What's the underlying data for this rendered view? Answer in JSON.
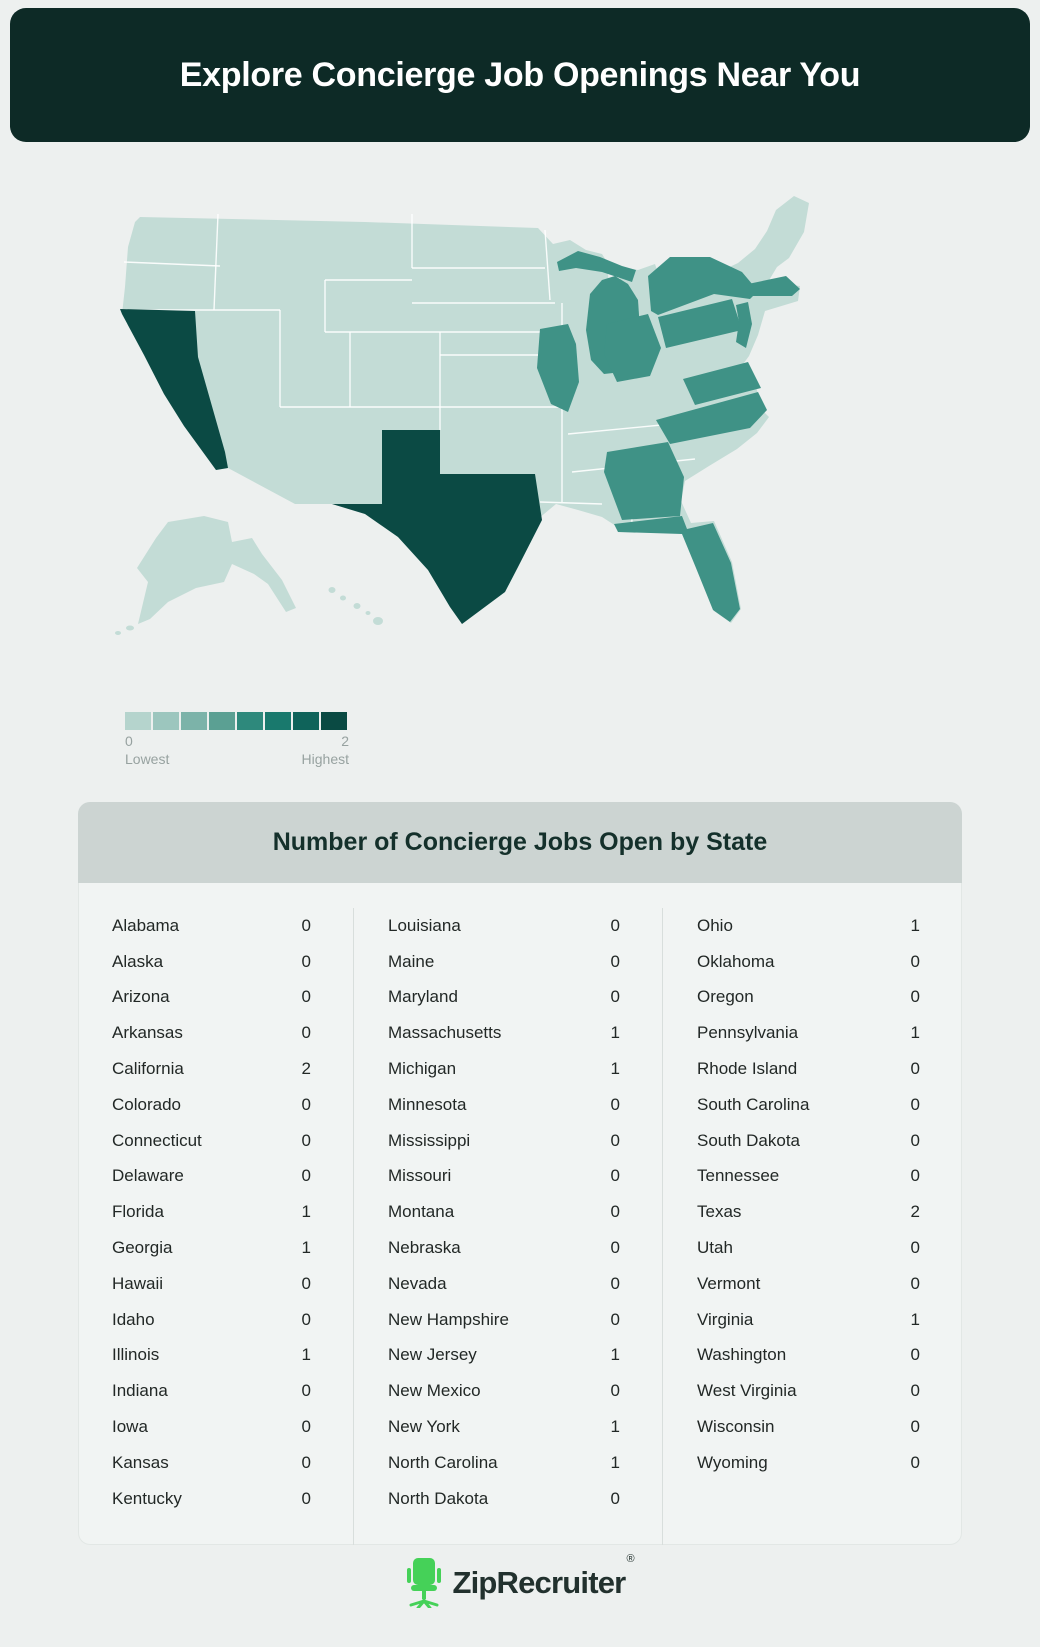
{
  "header": {
    "title": "Explore Concierge Job Openings Near You"
  },
  "map": {
    "description": "us-states-choropleth",
    "colors": {
      "value0": "#c3dcd6",
      "value1": "#3f9286",
      "value2": "#0b4a44"
    }
  },
  "legend": {
    "swatches": [
      "#b5d4cd",
      "#9cc6be",
      "#7cb3a9",
      "#5ba093",
      "#2e897c",
      "#19796d",
      "#0f635a",
      "#0a4a43"
    ],
    "min_value": "0",
    "max_value": "2",
    "min_label": "Lowest",
    "max_label": "Highest"
  },
  "table": {
    "title": "Number of Concierge Jobs Open by State",
    "columns": [
      [
        [
          "Alabama",
          "0"
        ],
        [
          "Alaska",
          "0"
        ],
        [
          "Arizona",
          "0"
        ],
        [
          "Arkansas",
          "0"
        ],
        [
          "California",
          "2"
        ],
        [
          "Colorado",
          "0"
        ],
        [
          "Connecticut",
          "0"
        ],
        [
          "Delaware",
          "0"
        ],
        [
          "Florida",
          "1"
        ],
        [
          "Georgia",
          "1"
        ],
        [
          "Hawaii",
          "0"
        ],
        [
          "Idaho",
          "0"
        ],
        [
          "Illinois",
          "1"
        ],
        [
          "Indiana",
          "0"
        ],
        [
          "Iowa",
          "0"
        ],
        [
          "Kansas",
          "0"
        ],
        [
          "Kentucky",
          "0"
        ]
      ],
      [
        [
          "Louisiana",
          "0"
        ],
        [
          "Maine",
          "0"
        ],
        [
          "Maryland",
          "0"
        ],
        [
          "Massachusetts",
          "1"
        ],
        [
          "Michigan",
          "1"
        ],
        [
          "Minnesota",
          "0"
        ],
        [
          "Mississippi",
          "0"
        ],
        [
          "Missouri",
          "0"
        ],
        [
          "Montana",
          "0"
        ],
        [
          "Nebraska",
          "0"
        ],
        [
          "Nevada",
          "0"
        ],
        [
          "New Hampshire",
          "0"
        ],
        [
          "New Jersey",
          "1"
        ],
        [
          "New Mexico",
          "0"
        ],
        [
          "New York",
          "1"
        ],
        [
          "North Carolina",
          "1"
        ],
        [
          "North Dakota",
          "0"
        ]
      ],
      [
        [
          "Ohio",
          "1"
        ],
        [
          "Oklahoma",
          "0"
        ],
        [
          "Oregon",
          "0"
        ],
        [
          "Pennsylvania",
          "1"
        ],
        [
          "Rhode Island",
          "0"
        ],
        [
          "South Carolina",
          "0"
        ],
        [
          "South Dakota",
          "0"
        ],
        [
          "Tennessee",
          "0"
        ],
        [
          "Texas",
          "2"
        ],
        [
          "Utah",
          "0"
        ],
        [
          "Vermont",
          "0"
        ],
        [
          "Virginia",
          "1"
        ],
        [
          "Washington",
          "0"
        ],
        [
          "West Virginia",
          "0"
        ],
        [
          "Wisconsin",
          "0"
        ],
        [
          "Wyoming",
          "0"
        ]
      ]
    ]
  },
  "chart_data": {
    "type": "heatmap",
    "subtype": "us-choropleth",
    "title": "Number of Concierge Jobs Open by State",
    "value_range": [
      0,
      2
    ],
    "legend": {
      "min": "Lowest",
      "max": "Highest"
    },
    "values_by_state": {
      "Alabama": 0,
      "Alaska": 0,
      "Arizona": 0,
      "Arkansas": 0,
      "California": 2,
      "Colorado": 0,
      "Connecticut": 0,
      "Delaware": 0,
      "Florida": 1,
      "Georgia": 1,
      "Hawaii": 0,
      "Idaho": 0,
      "Illinois": 1,
      "Indiana": 0,
      "Iowa": 0,
      "Kansas": 0,
      "Kentucky": 0,
      "Louisiana": 0,
      "Maine": 0,
      "Maryland": 0,
      "Massachusetts": 1,
      "Michigan": 1,
      "Minnesota": 0,
      "Mississippi": 0,
      "Missouri": 0,
      "Montana": 0,
      "Nebraska": 0,
      "Nevada": 0,
      "New Hampshire": 0,
      "New Jersey": 1,
      "New Mexico": 0,
      "New York": 1,
      "North Carolina": 1,
      "North Dakota": 0,
      "Ohio": 1,
      "Oklahoma": 0,
      "Oregon": 0,
      "Pennsylvania": 1,
      "Rhode Island": 0,
      "South Carolina": 0,
      "South Dakota": 0,
      "Tennessee": 0,
      "Texas": 2,
      "Utah": 0,
      "Vermont": 0,
      "Virginia": 1,
      "Washington": 0,
      "West Virginia": 0,
      "Wisconsin": 0,
      "Wyoming": 0
    }
  },
  "footer": {
    "brand": "ZipRecruiter",
    "registered": "®",
    "chair_color": "#45d158"
  }
}
